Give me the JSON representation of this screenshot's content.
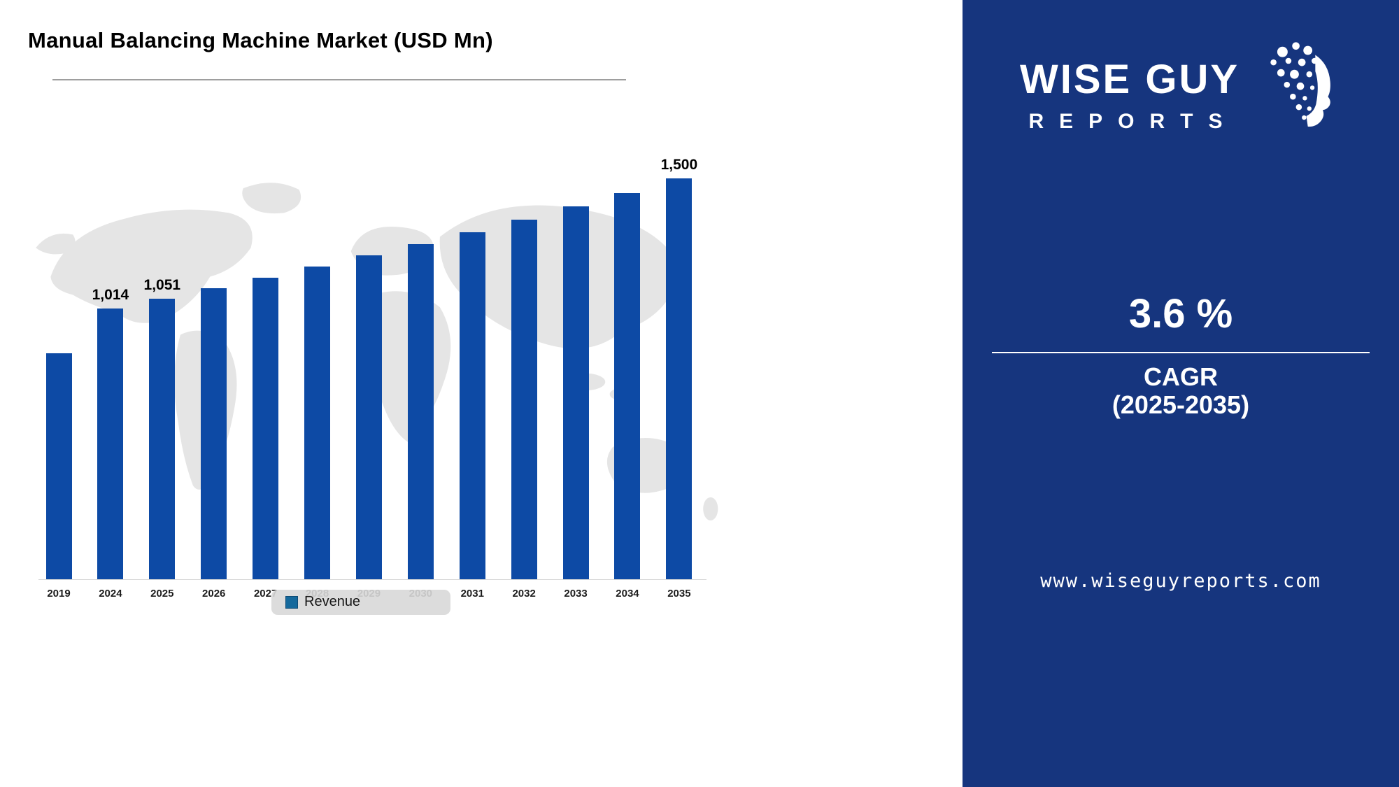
{
  "title": "Manual Balancing Machine Market (USD Mn)",
  "chart_data": {
    "type": "bar",
    "title": "Manual Balancing Machine Market (USD Mn)",
    "ylabel": "Revenue (USD Mn)",
    "ylim": [
      0,
      1500
    ],
    "grid": false,
    "legend_position": "bottom",
    "bar_color": "#0d4aa5",
    "categories": [
      "2019",
      "2024",
      "2025",
      "2026",
      "2027",
      "2028",
      "2029",
      "2030",
      "2031",
      "2032",
      "2033",
      "2034",
      "2035"
    ],
    "values": [
      845,
      1014,
      1051,
      1089,
      1128,
      1169,
      1211,
      1254,
      1299,
      1346,
      1394,
      1444,
      1500
    ],
    "points": [
      {
        "year": "2019",
        "value": 845,
        "label": ""
      },
      {
        "year": "2024",
        "value": 1014,
        "label": "1,014"
      },
      {
        "year": "2025",
        "value": 1051,
        "label": "1,051"
      },
      {
        "year": "2026",
        "value": 1089,
        "label": ""
      },
      {
        "year": "2027",
        "value": 1128,
        "label": ""
      },
      {
        "year": "2028",
        "value": 1169,
        "label": ""
      },
      {
        "year": "2029",
        "value": 1211,
        "label": ""
      },
      {
        "year": "2030",
        "value": 1254,
        "label": ""
      },
      {
        "year": "2031",
        "value": 1299,
        "label": ""
      },
      {
        "year": "2032",
        "value": 1346,
        "label": ""
      },
      {
        "year": "2033",
        "value": 1394,
        "label": ""
      },
      {
        "year": "2034",
        "value": 1444,
        "label": ""
      },
      {
        "year": "2035",
        "value": 1500,
        "label": "1,500"
      }
    ]
  },
  "legend": {
    "revenue_label": "Revenue",
    "swatch_color": "#15699c"
  },
  "sidebar": {
    "logo_line1": "WISE GUY",
    "logo_line2": "REPORTS",
    "cagr_value": "3.6 %",
    "cagr_label": "CAGR",
    "cagr_range": "(2025-2035)",
    "website": "www.wiseguyreports.com",
    "background_color": "#16357e"
  }
}
